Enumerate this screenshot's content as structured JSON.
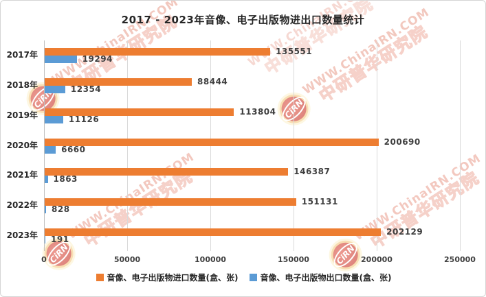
{
  "title": "2017 - 2023年音像、电子出版物进出口数量统计",
  "watermark": {
    "logo_text": "CiRN",
    "line1": "WWW.ChinaIRN.COM",
    "line2": "中研普华研究院"
  },
  "colors": {
    "import_series": "#ED7D31",
    "export_series": "#5B9BD5",
    "gridline": "#D9D9D9",
    "axis_line": "#BFBFBF",
    "label_text": "#3F3F3F",
    "title_text": "#262626",
    "watermark_pink": "#E79684",
    "watermark_logo_red": "#C52316"
  },
  "chart_data": {
    "type": "bar",
    "orientation": "horizontal",
    "title": "2017 - 2023年音像、电子出版物进出口数量统计",
    "categories": [
      "2017年",
      "2018年",
      "2019年",
      "2020年",
      "2021年",
      "2022年",
      "2023年"
    ],
    "series": [
      {
        "name": "音像、电子出版物进口数量(盒、张)",
        "color": "#ED7D31",
        "values": [
          135551,
          88444,
          113804,
          200690,
          146387,
          151131,
          202129
        ]
      },
      {
        "name": "音像、电子出版物出口数量(盒、张)",
        "color": "#5B9BD5",
        "values": [
          19294,
          12354,
          11126,
          6660,
          1863,
          828,
          191
        ]
      }
    ],
    "x_ticks": [
      0,
      50000,
      100000,
      150000,
      200000,
      250000
    ],
    "xlim": [
      0,
      250000
    ],
    "grid": true,
    "data_labels": true,
    "legend_position": "bottom"
  }
}
